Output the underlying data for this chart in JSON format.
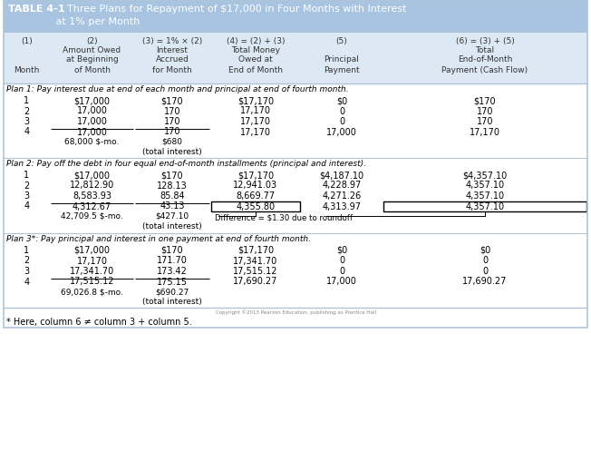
{
  "title_bold": "TABLE 4-1",
  "title_rest": "  Three Plans for Repayment of $17,000 in Four Months with Interest",
  "title_line2": "                at 1% per Month",
  "header_bg": "#a8c4e0",
  "subheader_bg": "#dce9f5",
  "white_bg": "#ffffff",
  "col_headers": [
    [
      "(1)",
      "(2)",
      "(3) = 1% × (2)",
      "(4) = (2) + (3)",
      "(5)",
      "(6) = (3) + (5)"
    ],
    [
      "",
      "Amount Owed",
      "Interest",
      "Total Money",
      "",
      "Total"
    ],
    [
      "",
      "at Beginning",
      "Accrued",
      "Owed at",
      "Principal",
      "End-of-Month"
    ],
    [
      "Month",
      "of Month",
      "for Month",
      "End of Month",
      "Payment",
      "Payment (Cash Flow)"
    ]
  ],
  "plan1_title": "Plan 1: Pay interest due at end of each month and principal at end of fourth month.",
  "plan1_data": [
    [
      "1",
      "$17,000",
      "$170",
      "$17,170",
      "$0",
      "$170"
    ],
    [
      "2",
      "17,000",
      "170",
      "17,170",
      "0",
      "170"
    ],
    [
      "3",
      "17,000",
      "170",
      "17,170",
      "0",
      "170"
    ],
    [
      "4",
      "17,000",
      "170",
      "17,170",
      "17,000",
      "17,170"
    ]
  ],
  "plan1_sum_col2": "68,000 $-mo.",
  "plan1_sum_col3": "$680",
  "plan1_sum_note": "(total interest)",
  "plan2_title": "Plan 2: Pay off the debt in four equal end-of-month installments (principal and interest).",
  "plan2_data": [
    [
      "1",
      "$17,000",
      "$170",
      "$17,170",
      "$4,187.10",
      "$4,357.10"
    ],
    [
      "2",
      "12,812.90",
      "128.13",
      "12,941.03",
      "4,228.97",
      "4,357.10"
    ],
    [
      "3",
      "8,583.93",
      "85.84",
      "8,669.77",
      "4,271.26",
      "4,357.10"
    ],
    [
      "4",
      "4,312.67",
      "43.13",
      "4,355.80",
      "4,313.97",
      "4,357.10"
    ]
  ],
  "plan2_sum_col2": "42,709.5 $-mo.",
  "plan2_sum_col3": "$427.10",
  "plan2_sum_note": "(total interest)",
  "plan2_diff_note": "Difference = $1.30 due to roundoff",
  "plan3_title": "Plan 3*: Pay principal and interest in one payment at end of fourth month.",
  "plan3_data": [
    [
      "1",
      "$17,000",
      "$170",
      "$17,170",
      "$0",
      "$0"
    ],
    [
      "2",
      "17,170",
      "171.70",
      "17,341.70",
      "0",
      "0"
    ],
    [
      "3",
      "17,341.70",
      "173.42",
      "17,515.12",
      "0",
      "0"
    ],
    [
      "4",
      "17,515.12",
      "175.15",
      "17,690.27",
      "17,000",
      "17,690.27"
    ]
  ],
  "plan3_sum_col2": "69,026.8 $-mo.",
  "plan3_sum_col3": "$690.27",
  "plan3_sum_note": "(total interest)",
  "footnote": "* Here, column 6 ≠ column 3 + column 5.",
  "copyright": "Copyright ©2013 Pearson Education, publishing as Prentice Hall"
}
